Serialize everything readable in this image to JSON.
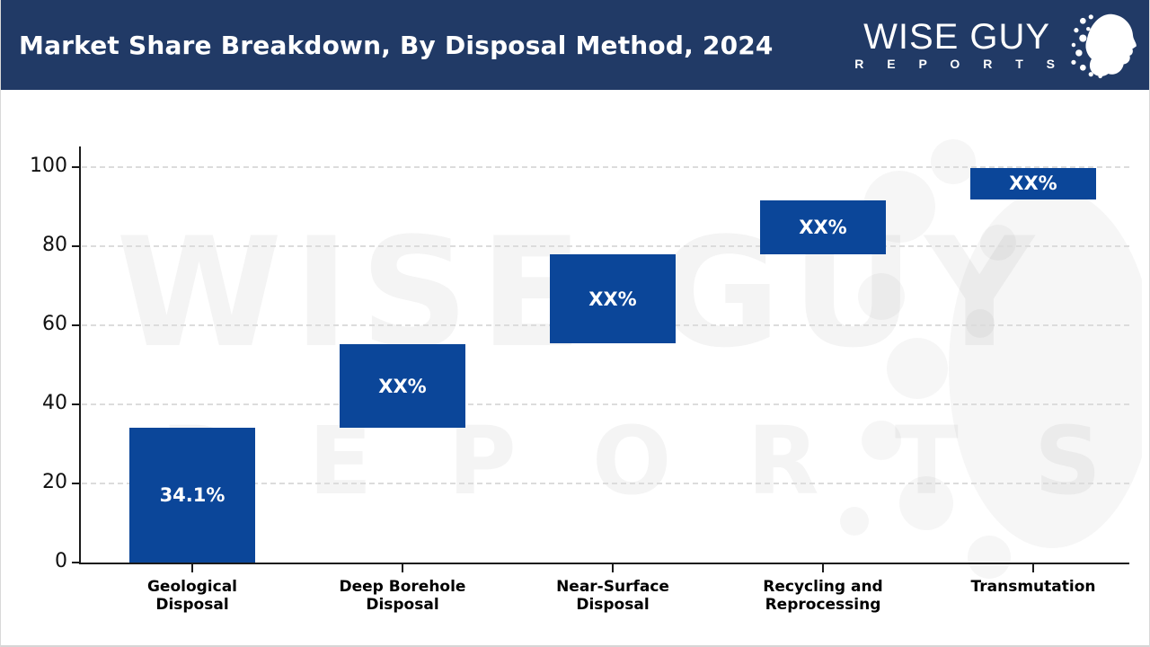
{
  "header": {
    "title": "Market Share Breakdown, By Disposal Method, 2024",
    "bg_color": "#213a66",
    "logo": {
      "name": "WISE GUY",
      "subname": "R E P O R T S"
    }
  },
  "watermark": {
    "line1": "WISE GUY",
    "line2": "R E P O R T S"
  },
  "chart_data": {
    "type": "bar",
    "variant": "waterfall",
    "title": "Market Share Breakdown, By Disposal Method, 2024",
    "categories": [
      "Geological Disposal",
      "Deep Borehole Disposal",
      "Near-Surface Disposal",
      "Recycling and Reprocessing",
      "Transmutation"
    ],
    "bars": [
      {
        "category": "Geological Disposal",
        "category_lines": [
          "Geological",
          "Disposal"
        ],
        "start": 0,
        "end": 34.1,
        "label": "34.1%"
      },
      {
        "category": "Deep Borehole Disposal",
        "category_lines": [
          "Deep Borehole",
          "Disposal"
        ],
        "start": 34.1,
        "end": 55.2,
        "label": "XX%"
      },
      {
        "category": "Near-Surface Disposal",
        "category_lines": [
          "Near-Surface",
          "Disposal"
        ],
        "start": 55.4,
        "end": 78.0,
        "label": "XX%"
      },
      {
        "category": "Recycling and Reprocessing",
        "category_lines": [
          "Recycling and",
          "Reprocessing"
        ],
        "start": 78.0,
        "end": 91.6,
        "label": "XX%"
      },
      {
        "category": "Transmutation",
        "category_lines": [
          "Transmutation"
        ],
        "start": 91.8,
        "end": 99.8,
        "label": "XX%"
      }
    ],
    "yticks": [
      0,
      20,
      40,
      60,
      80,
      100
    ],
    "ylim": [
      0,
      105
    ],
    "xlabel": "",
    "ylabel": "",
    "grid": {
      "axis": "y",
      "style": "dashed",
      "color": "#dcdcdc"
    },
    "legend": "none",
    "bar_color": "#0b4699",
    "bar_label_color": "#ffffff",
    "axis_color": "#1a1a1a"
  }
}
